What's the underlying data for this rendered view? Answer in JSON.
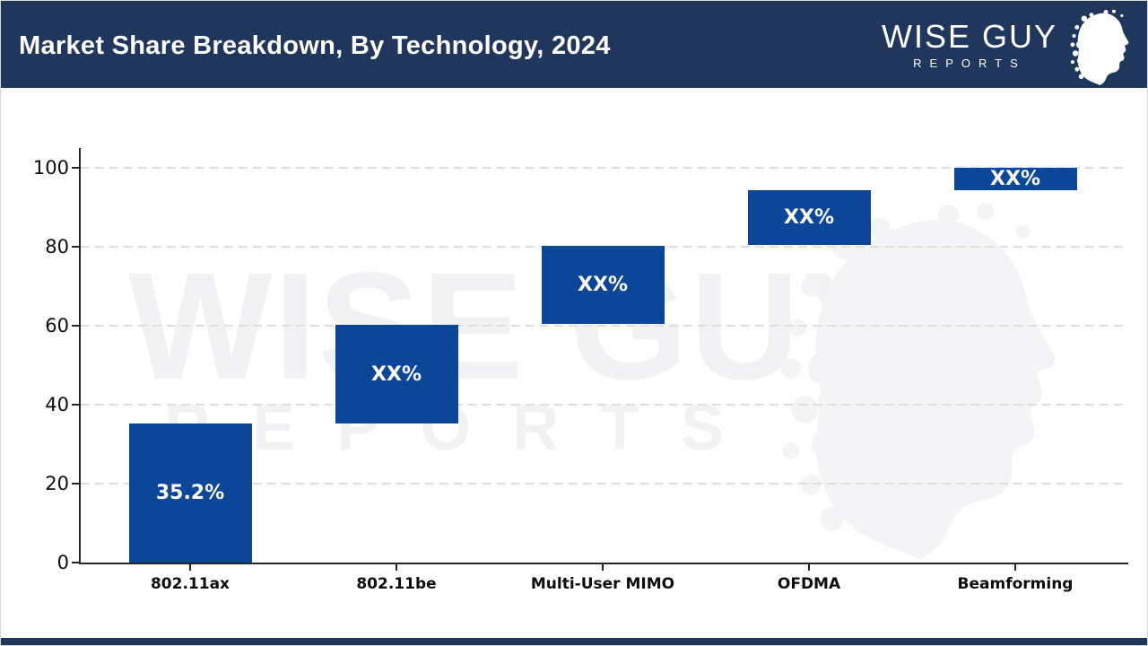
{
  "header": {
    "title": "Market Share Breakdown, By Technology, 2024",
    "brand": {
      "line1": "WISE GUY",
      "line2": "REPORTS"
    }
  },
  "watermark": {
    "line1": "WISE GUY",
    "line2": "REPORTS",
    "head_icon": "dotted-head-profile"
  },
  "chart_data": {
    "type": "bar",
    "subtype": "waterfall",
    "title": "Market Share Breakdown, By Technology, 2024",
    "categories": [
      "802.11ax",
      "802.11be",
      "Multi-User MIMO",
      "OFDMA",
      "Beamforming"
    ],
    "segments": [
      {
        "category": "802.11ax",
        "start": 0,
        "end": 35.2,
        "label": "35.2%"
      },
      {
        "category": "802.11be",
        "start": 35.2,
        "end": 60.2,
        "label": "XX%"
      },
      {
        "category": "Multi-User MIMO",
        "start": 60.4,
        "end": 80.3,
        "label": "XX%"
      },
      {
        "category": "OFDMA",
        "start": 80.5,
        "end": 94.3,
        "label": "XX%"
      },
      {
        "category": "Beamforming",
        "start": 94.4,
        "end": 100.1,
        "label": "XX%"
      }
    ],
    "xlabel": "",
    "ylabel": "",
    "ylim": [
      0,
      100
    ],
    "yticks": [
      0,
      20,
      40,
      60,
      80,
      100
    ],
    "grid": "horizontal-dashed",
    "legend": "none",
    "bar_color": "#0c4699",
    "label_color": "#ffffff"
  },
  "colors": {
    "header_bg": "#20365c",
    "footer_bg": "#20365c",
    "bar_blue": "#0c4699",
    "gridline": "#dedede",
    "axis": "#262626",
    "watermark": "#f2f2f4",
    "frame_border": "#d9d9d9"
  }
}
